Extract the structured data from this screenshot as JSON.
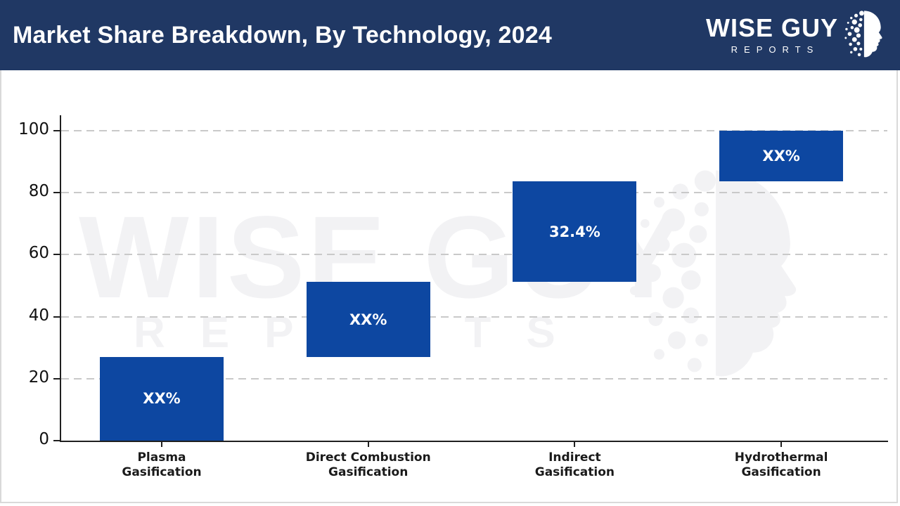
{
  "header": {
    "title": "Market Share Breakdown, By Technology, 2024",
    "logo_line1": "WISE GUY",
    "logo_line2": "REPORTS"
  },
  "watermark": {
    "line1": "WISE GUY",
    "line2": "REPORTS"
  },
  "colors": {
    "header_bg": "#203864",
    "bar": "#0d47a1",
    "bar_label": "#ffffff",
    "grid": "#c9c9c9",
    "axis": "#1f1f1f",
    "tick_text": "#111111",
    "watermark": "#f2f2f4",
    "border": "#d9d9d9"
  },
  "chart_data": {
    "type": "bar",
    "subtype": "floating-segment-bars (stacked waterfall of market shares)",
    "title": "Market Share Breakdown, By Technology, 2024",
    "categories": [
      "Plasma Gasification",
      "Direct Combustion Gasification",
      "Indirect Gasification",
      "Hydrothermal Gasification"
    ],
    "category_label_lines": [
      [
        "Plasma",
        "Gasification"
      ],
      [
        "Direct Combustion",
        "Gasification"
      ],
      [
        "Indirect",
        "Gasification"
      ],
      [
        "Hydrothermal",
        "Gasification"
      ]
    ],
    "bars": [
      {
        "category": "Plasma Gasification",
        "range": [
          0,
          27
        ],
        "label": "XX%"
      },
      {
        "category": "Direct Combustion Gasification",
        "range": [
          27,
          51.2
        ],
        "label": "XX%"
      },
      {
        "category": "Indirect Gasification",
        "range": [
          51.2,
          83.6
        ],
        "label": "32.4%",
        "value": 32.4
      },
      {
        "category": "Hydrothermal Gasification",
        "range": [
          83.6,
          100
        ],
        "label": "XX%"
      }
    ],
    "xlabel": "",
    "ylabel": "",
    "ylim": [
      0,
      100
    ],
    "yticks": [
      0,
      20,
      40,
      60,
      80,
      100
    ],
    "grid": "horizontal-dashed",
    "legend": "none"
  }
}
